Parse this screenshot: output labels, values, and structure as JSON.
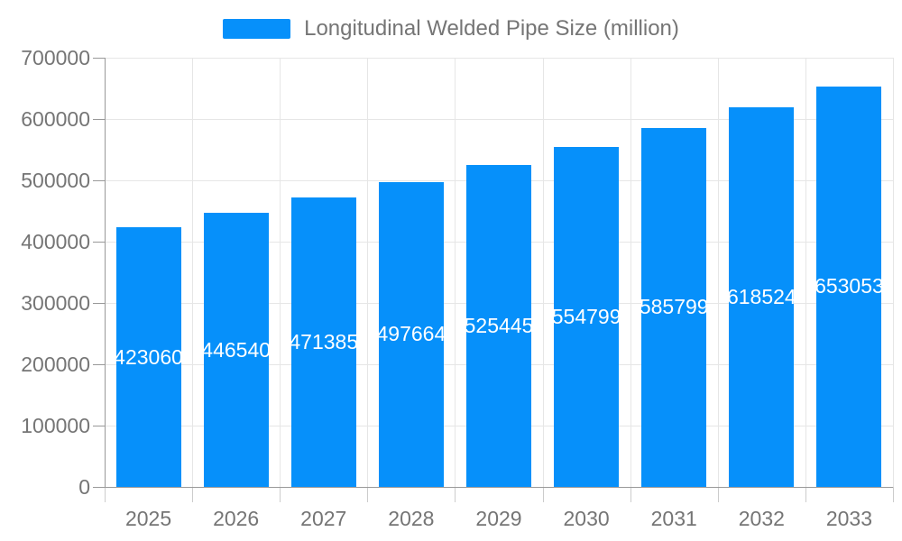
{
  "legend": {
    "label": "Longitudinal Welded Pipe Size (million)"
  },
  "colors": {
    "bar": "#0690FA",
    "bar_label": "#ffffff",
    "axis_label": "#757575",
    "grid_line": "#e6e6e6",
    "axis_line": "#999999",
    "tick_line": "#cccccc"
  },
  "chart_data": {
    "type": "bar",
    "title": "",
    "xlabel": "",
    "ylabel": "",
    "series_name": "Longitudinal Welded Pipe Size (million)",
    "categories": [
      "2025",
      "2026",
      "2027",
      "2028",
      "2029",
      "2030",
      "2031",
      "2032",
      "2033"
    ],
    "values": [
      423060,
      446540,
      471385,
      497664,
      525445,
      554799,
      585799,
      618524,
      653053
    ],
    "bar_labels": [
      "423060",
      "446540",
      "471385",
      "497664",
      "525445",
      "554799",
      "585799",
      "618524",
      "653053"
    ],
    "ylim": [
      0,
      700000
    ],
    "y_ticks": [
      0,
      100000,
      200000,
      300000,
      400000,
      500000,
      600000,
      700000
    ],
    "y_tick_labels": [
      "0",
      "100000",
      "200000",
      "300000",
      "400000",
      "500000",
      "600000",
      "700000"
    ],
    "grid": true,
    "legend_position": "top",
    "bar_label_position": "inside-center"
  }
}
